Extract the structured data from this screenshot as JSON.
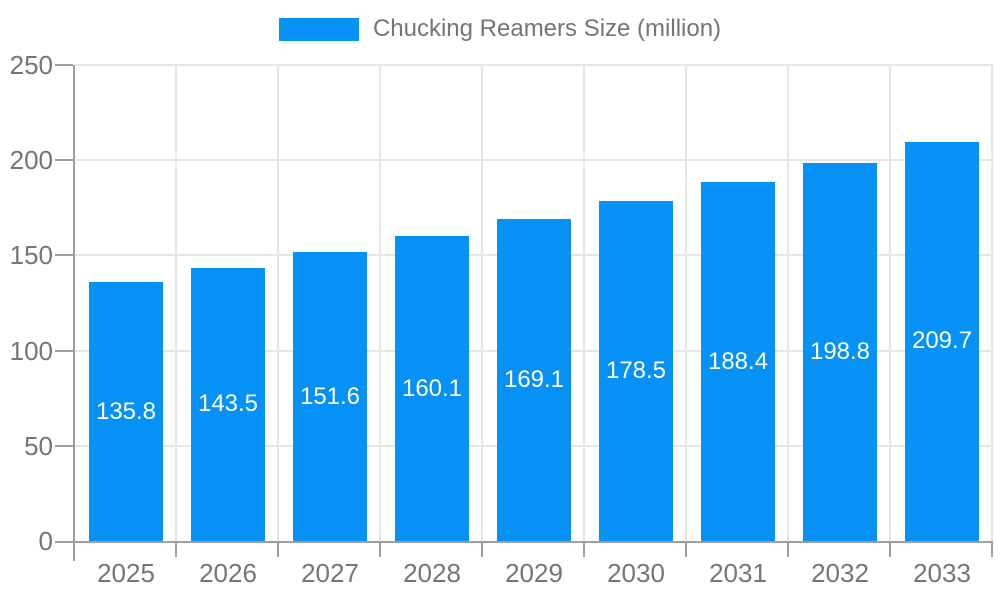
{
  "legend": {
    "label": "Chucking Reamers Size (million)"
  },
  "chart_data": {
    "type": "bar",
    "title": "",
    "categories": [
      "2025",
      "2026",
      "2027",
      "2028",
      "2029",
      "2030",
      "2031",
      "2032",
      "2033"
    ],
    "series": [
      {
        "name": "Chucking Reamers Size (million)",
        "values": [
          135.8,
          143.5,
          151.6,
          160.1,
          169.1,
          178.5,
          188.4,
          198.8,
          209.7
        ]
      }
    ],
    "values": [
      135.8,
      143.5,
      151.6,
      160.1,
      169.1,
      178.5,
      188.4,
      198.8,
      209.7
    ],
    "value_labels": [
      "135.8",
      "143.5",
      "151.6",
      "160.1",
      "169.1",
      "178.5",
      "188.4",
      "198.8",
      "209.7"
    ],
    "xlabel": "",
    "ylabel": "",
    "ylim": [
      0,
      250
    ],
    "yticks": [
      0,
      50,
      100,
      150,
      200,
      250
    ],
    "grid": true,
    "legend_position": "top",
    "colors": {
      "bar": "#0591f5",
      "axis": "#9e9e9e",
      "grid": "#e6e6e6",
      "tick_text": "#757575",
      "value_text": "#ffffff"
    }
  }
}
